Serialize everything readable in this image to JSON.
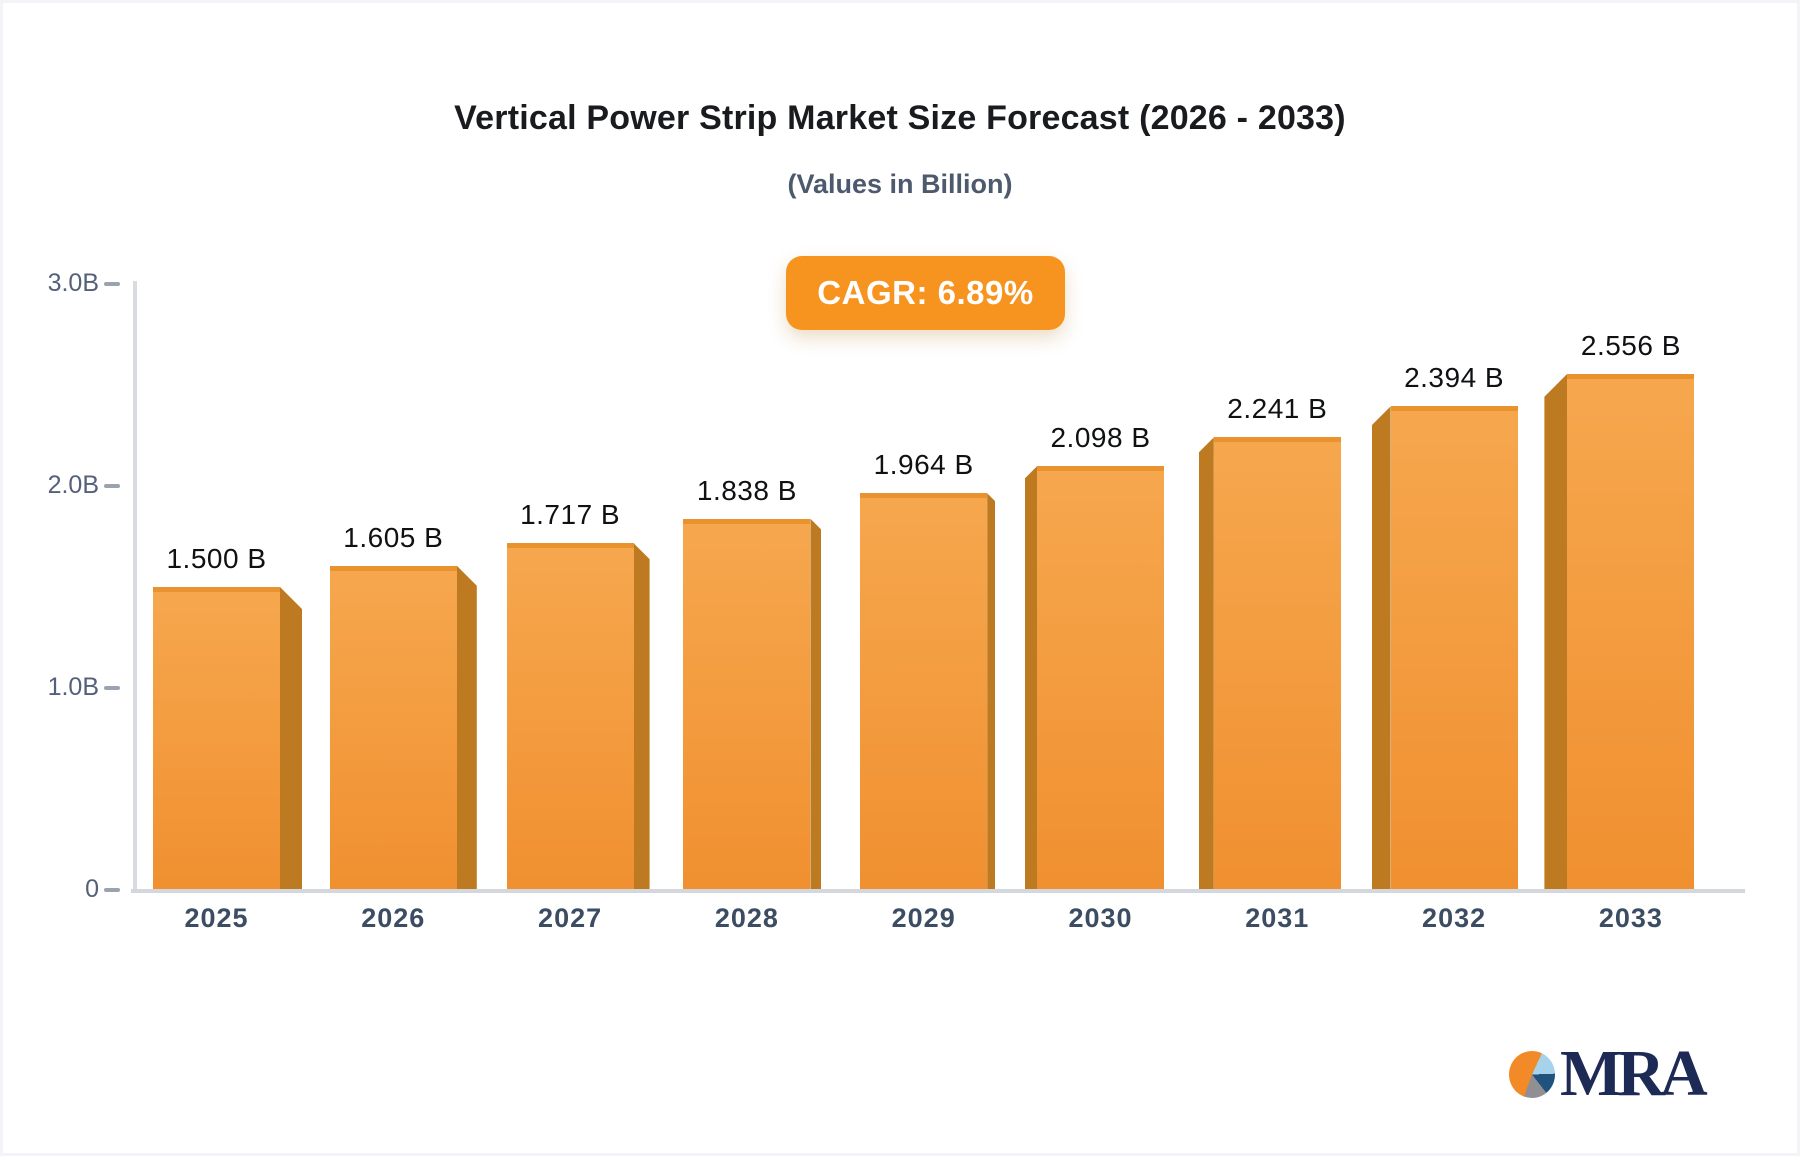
{
  "header": {
    "title": "Vertical Power Strip Market Size Forecast (2026 - 2033)",
    "subtitle": "(Values in Billion)",
    "cagr_label": "CAGR: 6.89%"
  },
  "footer": {
    "logo_text": "MRA"
  },
  "chart_data": {
    "type": "bar",
    "title": "Vertical Power Strip Market Size Forecast (2026 - 2033)",
    "subtitle": "(Values in Billion)",
    "annotation": "CAGR: 6.89%",
    "categories": [
      "2025",
      "2026",
      "2027",
      "2028",
      "2029",
      "2030",
      "2031",
      "2032",
      "2033"
    ],
    "values": [
      1.5,
      1.605,
      1.717,
      1.838,
      1.964,
      2.098,
      2.241,
      2.394,
      2.556
    ],
    "value_labels": [
      "1.500 B",
      "1.605 B",
      "1.717 B",
      "1.838 B",
      "1.964 B",
      "2.098 B",
      "2.241 B",
      "2.394 B",
      "2.556 B"
    ],
    "xlabel": "",
    "ylabel": "",
    "ylim": [
      0,
      3.0
    ],
    "y_ticks": [
      {
        "label": "3.0B",
        "value": 3.0
      },
      {
        "label": "2.0B",
        "value": 2.0
      },
      {
        "label": "1.0B",
        "value": 1.0
      },
      {
        "label": "0",
        "value": 0
      }
    ],
    "grid": false,
    "legend": false,
    "bar_style": "3d-extruded",
    "colors": {
      "bar_face_top": "#F6A74E",
      "bar_face_bottom": "#F09030",
      "bar_side": "#BE7A20",
      "bar_top_edge": "#E8932E",
      "accent": "#F7941F",
      "axis": "#D6D9DF",
      "tick_text": "#55617A",
      "x_label_text": "#3C4D63",
      "value_label_text": "#111111"
    }
  }
}
